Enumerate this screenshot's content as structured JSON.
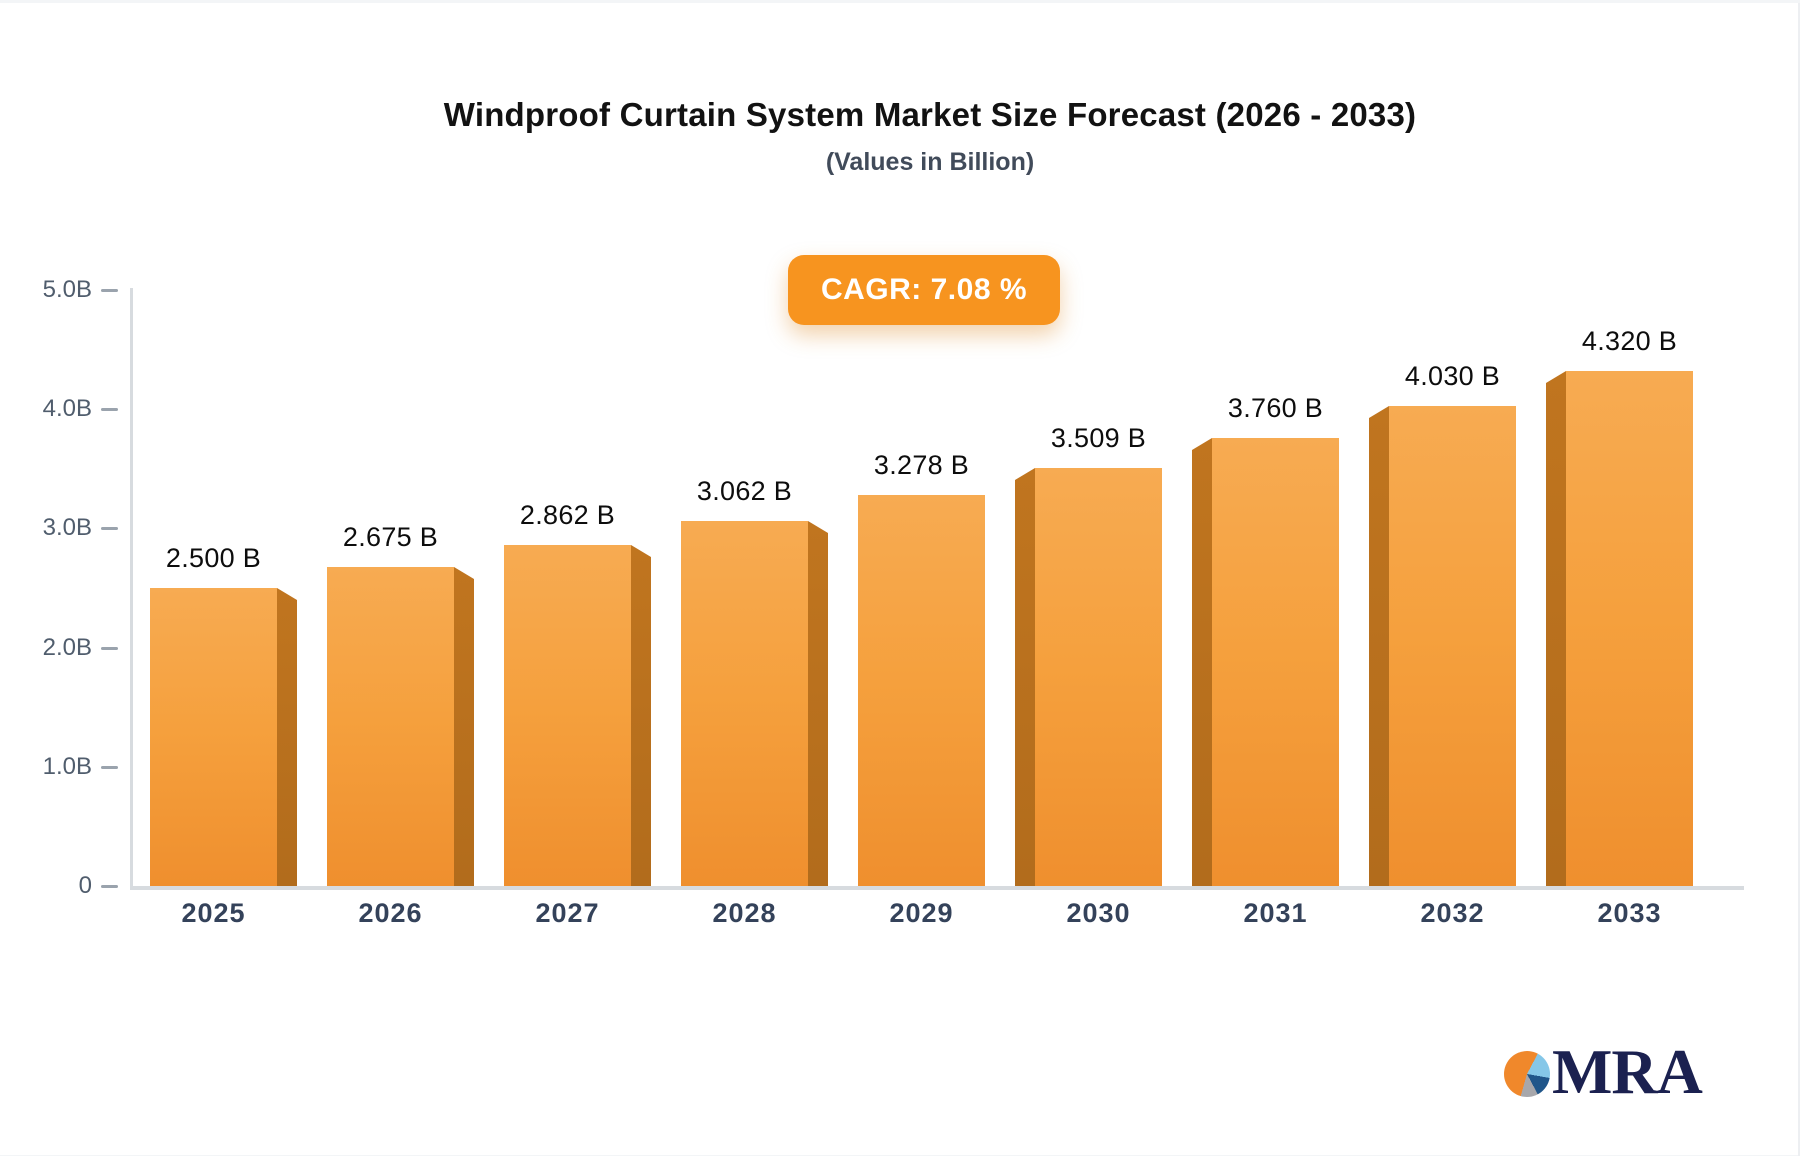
{
  "chart_data": {
    "type": "bar",
    "title": "Windproof Curtain System Market Size Forecast (2026 - 2033)",
    "subtitle": "(Values in Billion)",
    "cagr_badge": "CAGR: 7.08 %",
    "categories": [
      "2025",
      "2026",
      "2027",
      "2028",
      "2029",
      "2030",
      "2031",
      "2032",
      "2033"
    ],
    "values": [
      2.5,
      2.675,
      2.862,
      3.062,
      3.278,
      3.509,
      3.76,
      4.03,
      4.32
    ],
    "value_labels": [
      "2.500 B",
      "2.675 B",
      "2.862 B",
      "3.062 B",
      "3.278 B",
      "3.509 B",
      "3.760 B",
      "4.030 B",
      "4.320 B"
    ],
    "unit": "Billion",
    "ylim": [
      0,
      5
    ],
    "ytick_values": [
      0,
      1,
      2,
      3,
      4,
      5
    ],
    "ytick_labels": [
      "0",
      "1.0B",
      "2.0B",
      "3.0B",
      "4.0B",
      "5.0B"
    ],
    "grid": false,
    "legend": false,
    "bar_style": "3d",
    "colors": {
      "bar_front_top": "#f7ab52",
      "bar_front_bottom": "#ef8f2e",
      "bar_side": "#b26e1c",
      "badge_background": "#f7941f",
      "axis_line": "#d7dbdf",
      "tick_label": "#505d6d",
      "category_label": "#34425a",
      "value_label": "#0d0d0d"
    }
  },
  "branding": {
    "logo_text": "MRA"
  }
}
